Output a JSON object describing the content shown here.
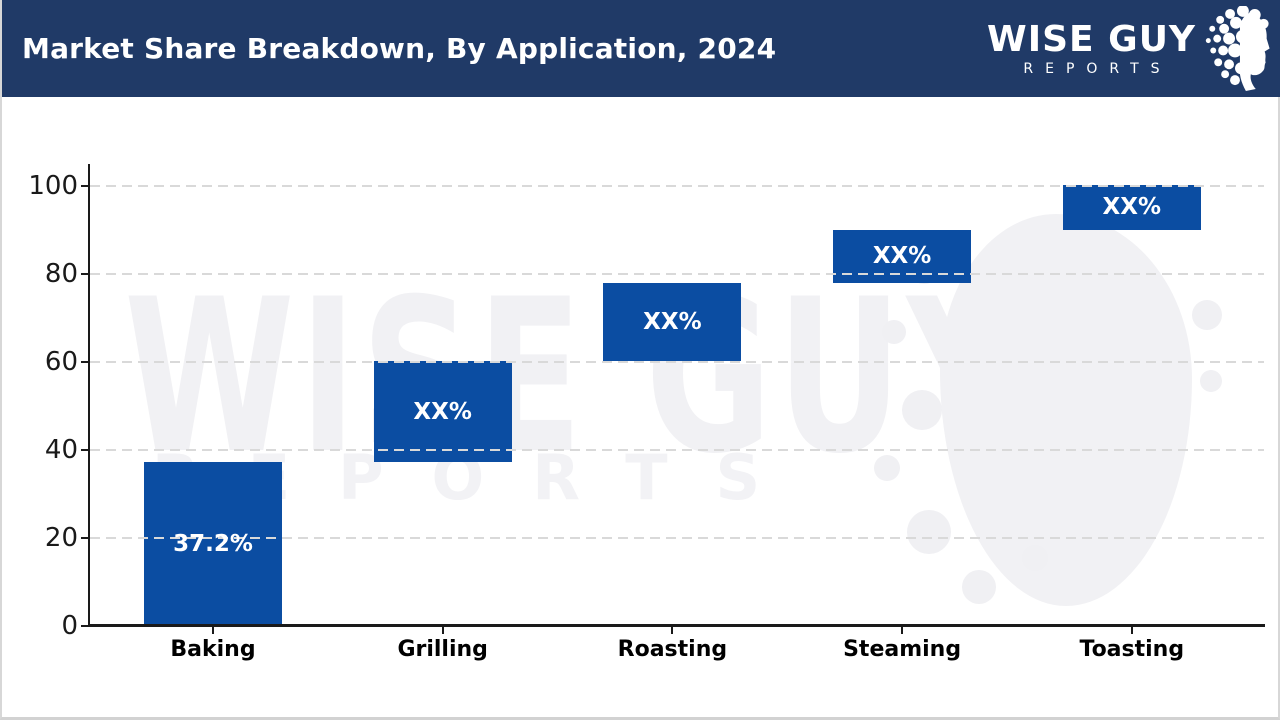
{
  "header": {
    "title": "Market Share Breakdown, By Application, 2024",
    "logo": {
      "brand": "WISE GUY",
      "sub": "REPORTS",
      "icon": "dotted-head-profile-icon"
    }
  },
  "watermark": {
    "brand": "WISE GUY",
    "sub": "REPORTS"
  },
  "colors": {
    "header_bg": "#203a67",
    "bar_fill": "#0b4da2",
    "grid": "#d9d9d9",
    "axis": "#1a1a1a",
    "tick_text": "#1a1a1a",
    "bar_label_text": "#ffffff",
    "title_text": "#ffffff",
    "watermark": "#f1f1f4"
  },
  "chart_data": {
    "type": "bar",
    "subtype": "waterfall",
    "title": "Market Share Breakdown, By Application, 2024",
    "categories": [
      "Baking",
      "Grilling",
      "Roasting",
      "Steaming",
      "Toasting"
    ],
    "bars": [
      {
        "category": "Baking",
        "start": 0,
        "end": 37.2,
        "label": "37.2%"
      },
      {
        "category": "Grilling",
        "start": 37.2,
        "end": 60.3,
        "label": "XX%"
      },
      {
        "category": "Roasting",
        "start": 60.3,
        "end": 78.0,
        "label": "XX%"
      },
      {
        "category": "Steaming",
        "start": 78.0,
        "end": 90.1,
        "label": "XX%"
      },
      {
        "category": "Toasting",
        "start": 90.1,
        "end": 100.2,
        "label": "XX%"
      }
    ],
    "yticks": [
      0,
      20,
      40,
      60,
      80,
      100
    ],
    "ylim": [
      0,
      105
    ],
    "xlabel": "",
    "ylabel": "",
    "grid": "horizontal-dashed",
    "legend": "none"
  }
}
